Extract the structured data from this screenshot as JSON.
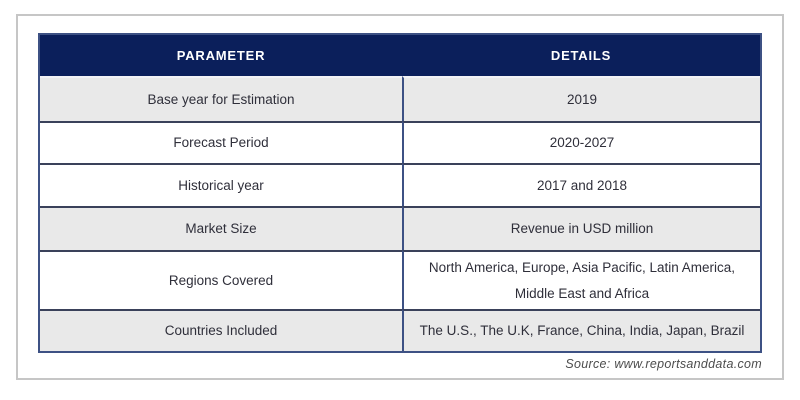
{
  "colors": {
    "header_bg": "#0b1f5b",
    "header_text": "#ffffff",
    "row_gray": "#e9e9e9",
    "table_border": "#3d5184",
    "row_divider": "#3a415a",
    "header_divider": "#f2f2f6",
    "body_text": "#2f2f3a",
    "card_border": "#c6c6c6",
    "source_text": "#4d4d4d"
  },
  "chart_data": {
    "type": "table",
    "columns": [
      "PARAMETER",
      "DETAILS"
    ],
    "rows": [
      [
        "Base year for Estimation",
        "2019"
      ],
      [
        "Forecast Period",
        "2020-2027"
      ],
      [
        "Historical year",
        "2017 and 2018"
      ],
      [
        "Market Size",
        "Revenue in USD million"
      ],
      [
        "Regions Covered",
        "North America, Europe, Asia Pacific, Latin America,\nMiddle East and Africa"
      ],
      [
        "Countries Included",
        "The U.S., The  U.K, France, China, India, Japan, Brazil"
      ]
    ]
  },
  "source": {
    "label": "Source: www.reportsanddata.com"
  }
}
